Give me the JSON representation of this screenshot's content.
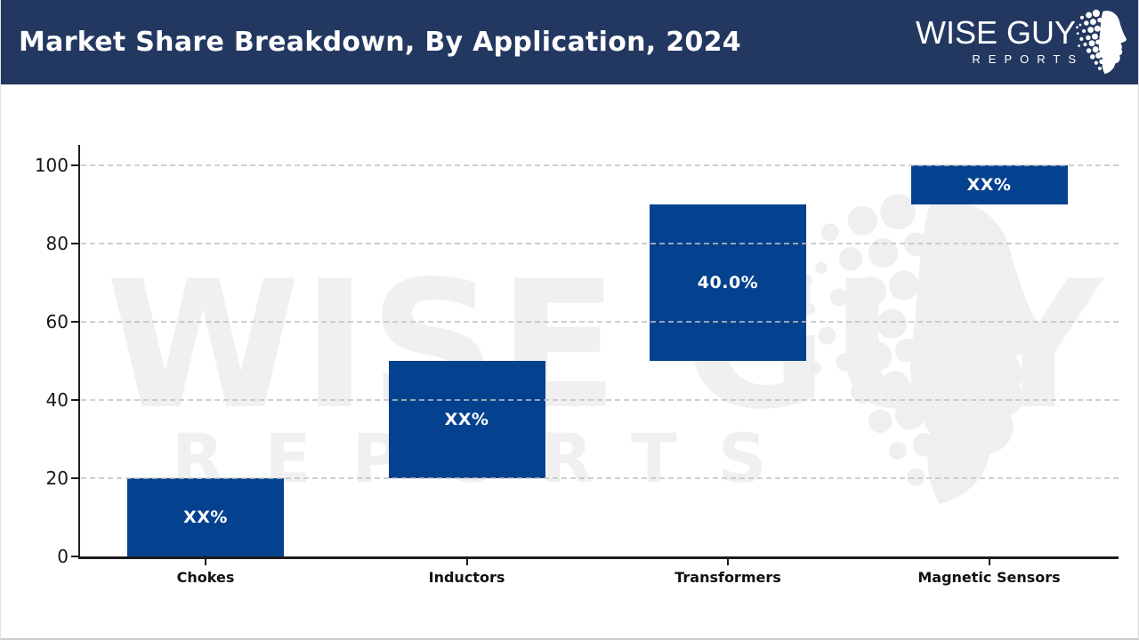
{
  "header": {
    "title": "Market Share Breakdown, By Application, 2024",
    "background_color": "#233861",
    "brand_name": "WISE GUY",
    "brand_subtitle": "REPORTS"
  },
  "watermark": {
    "brand_name": "WISE GUY",
    "brand_subtitle": "REPORTS"
  },
  "chart_data": {
    "type": "bar",
    "subtype": "floating-waterfall",
    "title": "Market Share Breakdown, By Application, 2024",
    "categories": [
      "Chokes",
      "Inductors",
      "Transformers",
      "Magnetic Sensors"
    ],
    "series": [
      {
        "name": "Market Share",
        "segments": [
          {
            "category": "Chokes",
            "start": 0,
            "end": 20,
            "label": "XX%"
          },
          {
            "category": "Inductors",
            "start": 20,
            "end": 50,
            "label": "XX%"
          },
          {
            "category": "Transformers",
            "start": 50,
            "end": 90,
            "label": "40.0%"
          },
          {
            "category": "Magnetic Sensors",
            "start": 90,
            "end": 100,
            "label": "XX%"
          }
        ]
      }
    ],
    "yticks": [
      0,
      20,
      40,
      60,
      80,
      100
    ],
    "ylim": [
      0,
      105
    ],
    "xlabel": "",
    "ylabel": "",
    "grid": {
      "horizontal": true,
      "style": "dashed",
      "color": "#d9d9d9"
    },
    "legend": "none",
    "bar_color": "#04418f",
    "bar_label_color": "#ffffff",
    "axis_color": "#1c1c1c"
  }
}
